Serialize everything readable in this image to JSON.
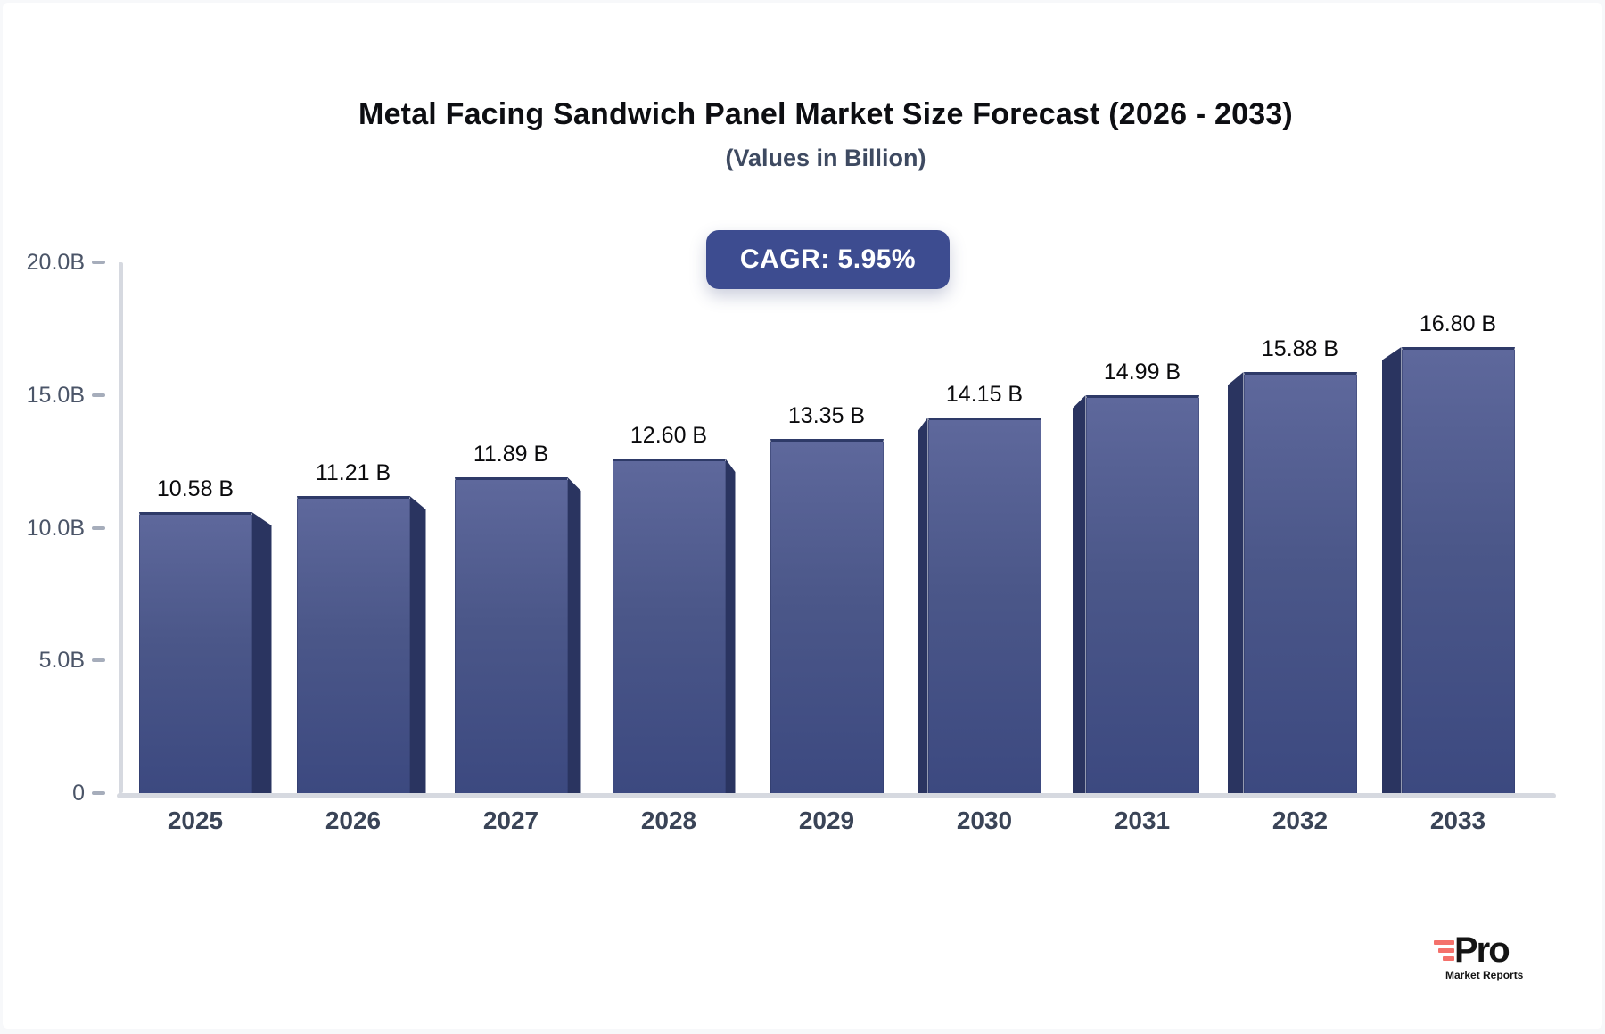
{
  "header": {
    "title": "Metal Facing Sandwich Panel Market Size Forecast (2026 - 2033)",
    "subtitle": "(Values in Billion)",
    "cagr_badge": "CAGR: 5.95%",
    "cagr_badge_bg": "#3d4c90",
    "cagr_badge_text_color": "#ffffff"
  },
  "chart_data": {
    "type": "bar",
    "title": "Metal Facing Sandwich Panel Market Size Forecast (2026 - 2033)",
    "subtitle": "(Values in Billion)",
    "annotation": "CAGR: 5.95%",
    "categories": [
      "2025",
      "2026",
      "2027",
      "2028",
      "2029",
      "2030",
      "2031",
      "2032",
      "2033"
    ],
    "values": [
      10.58,
      11.21,
      11.89,
      12.6,
      13.35,
      14.15,
      14.99,
      15.88,
      16.8
    ],
    "value_labels": [
      "10.58 B",
      "11.21 B",
      "11.89 B",
      "12.60 B",
      "13.35 B",
      "14.15 B",
      "14.99 B",
      "15.88 B",
      "16.80 B"
    ],
    "unit": "B",
    "xlabel": "",
    "ylabel": "",
    "ylim": [
      0,
      20
    ],
    "yticks": [
      {
        "value": 20,
        "label": "20.0B"
      },
      {
        "value": 15,
        "label": "15.0B"
      },
      {
        "value": 10,
        "label": "10.0B"
      },
      {
        "value": 5,
        "label": "5.0B"
      },
      {
        "value": 0,
        "label": "0"
      }
    ],
    "grid": false,
    "legend": "none",
    "bar_style": "3d-perspective",
    "colors": {
      "bar_face_top": "#5e689c",
      "bar_face_mid": "#4b5789",
      "bar_face_bottom": "#3c4980",
      "bar_side": "#2a3460",
      "bar_top_edge": "#2e3a68",
      "axis_line": "#d6d9e0",
      "tick_mark": "#a6adbb",
      "tick_label": "#4b5568",
      "category_label": "#3a4457",
      "value_label": "#0a0a0c"
    }
  },
  "logo": {
    "name": "Pro",
    "tagline": "Market Reports",
    "accent_color": "#f4716b",
    "text_color": "#141414"
  }
}
